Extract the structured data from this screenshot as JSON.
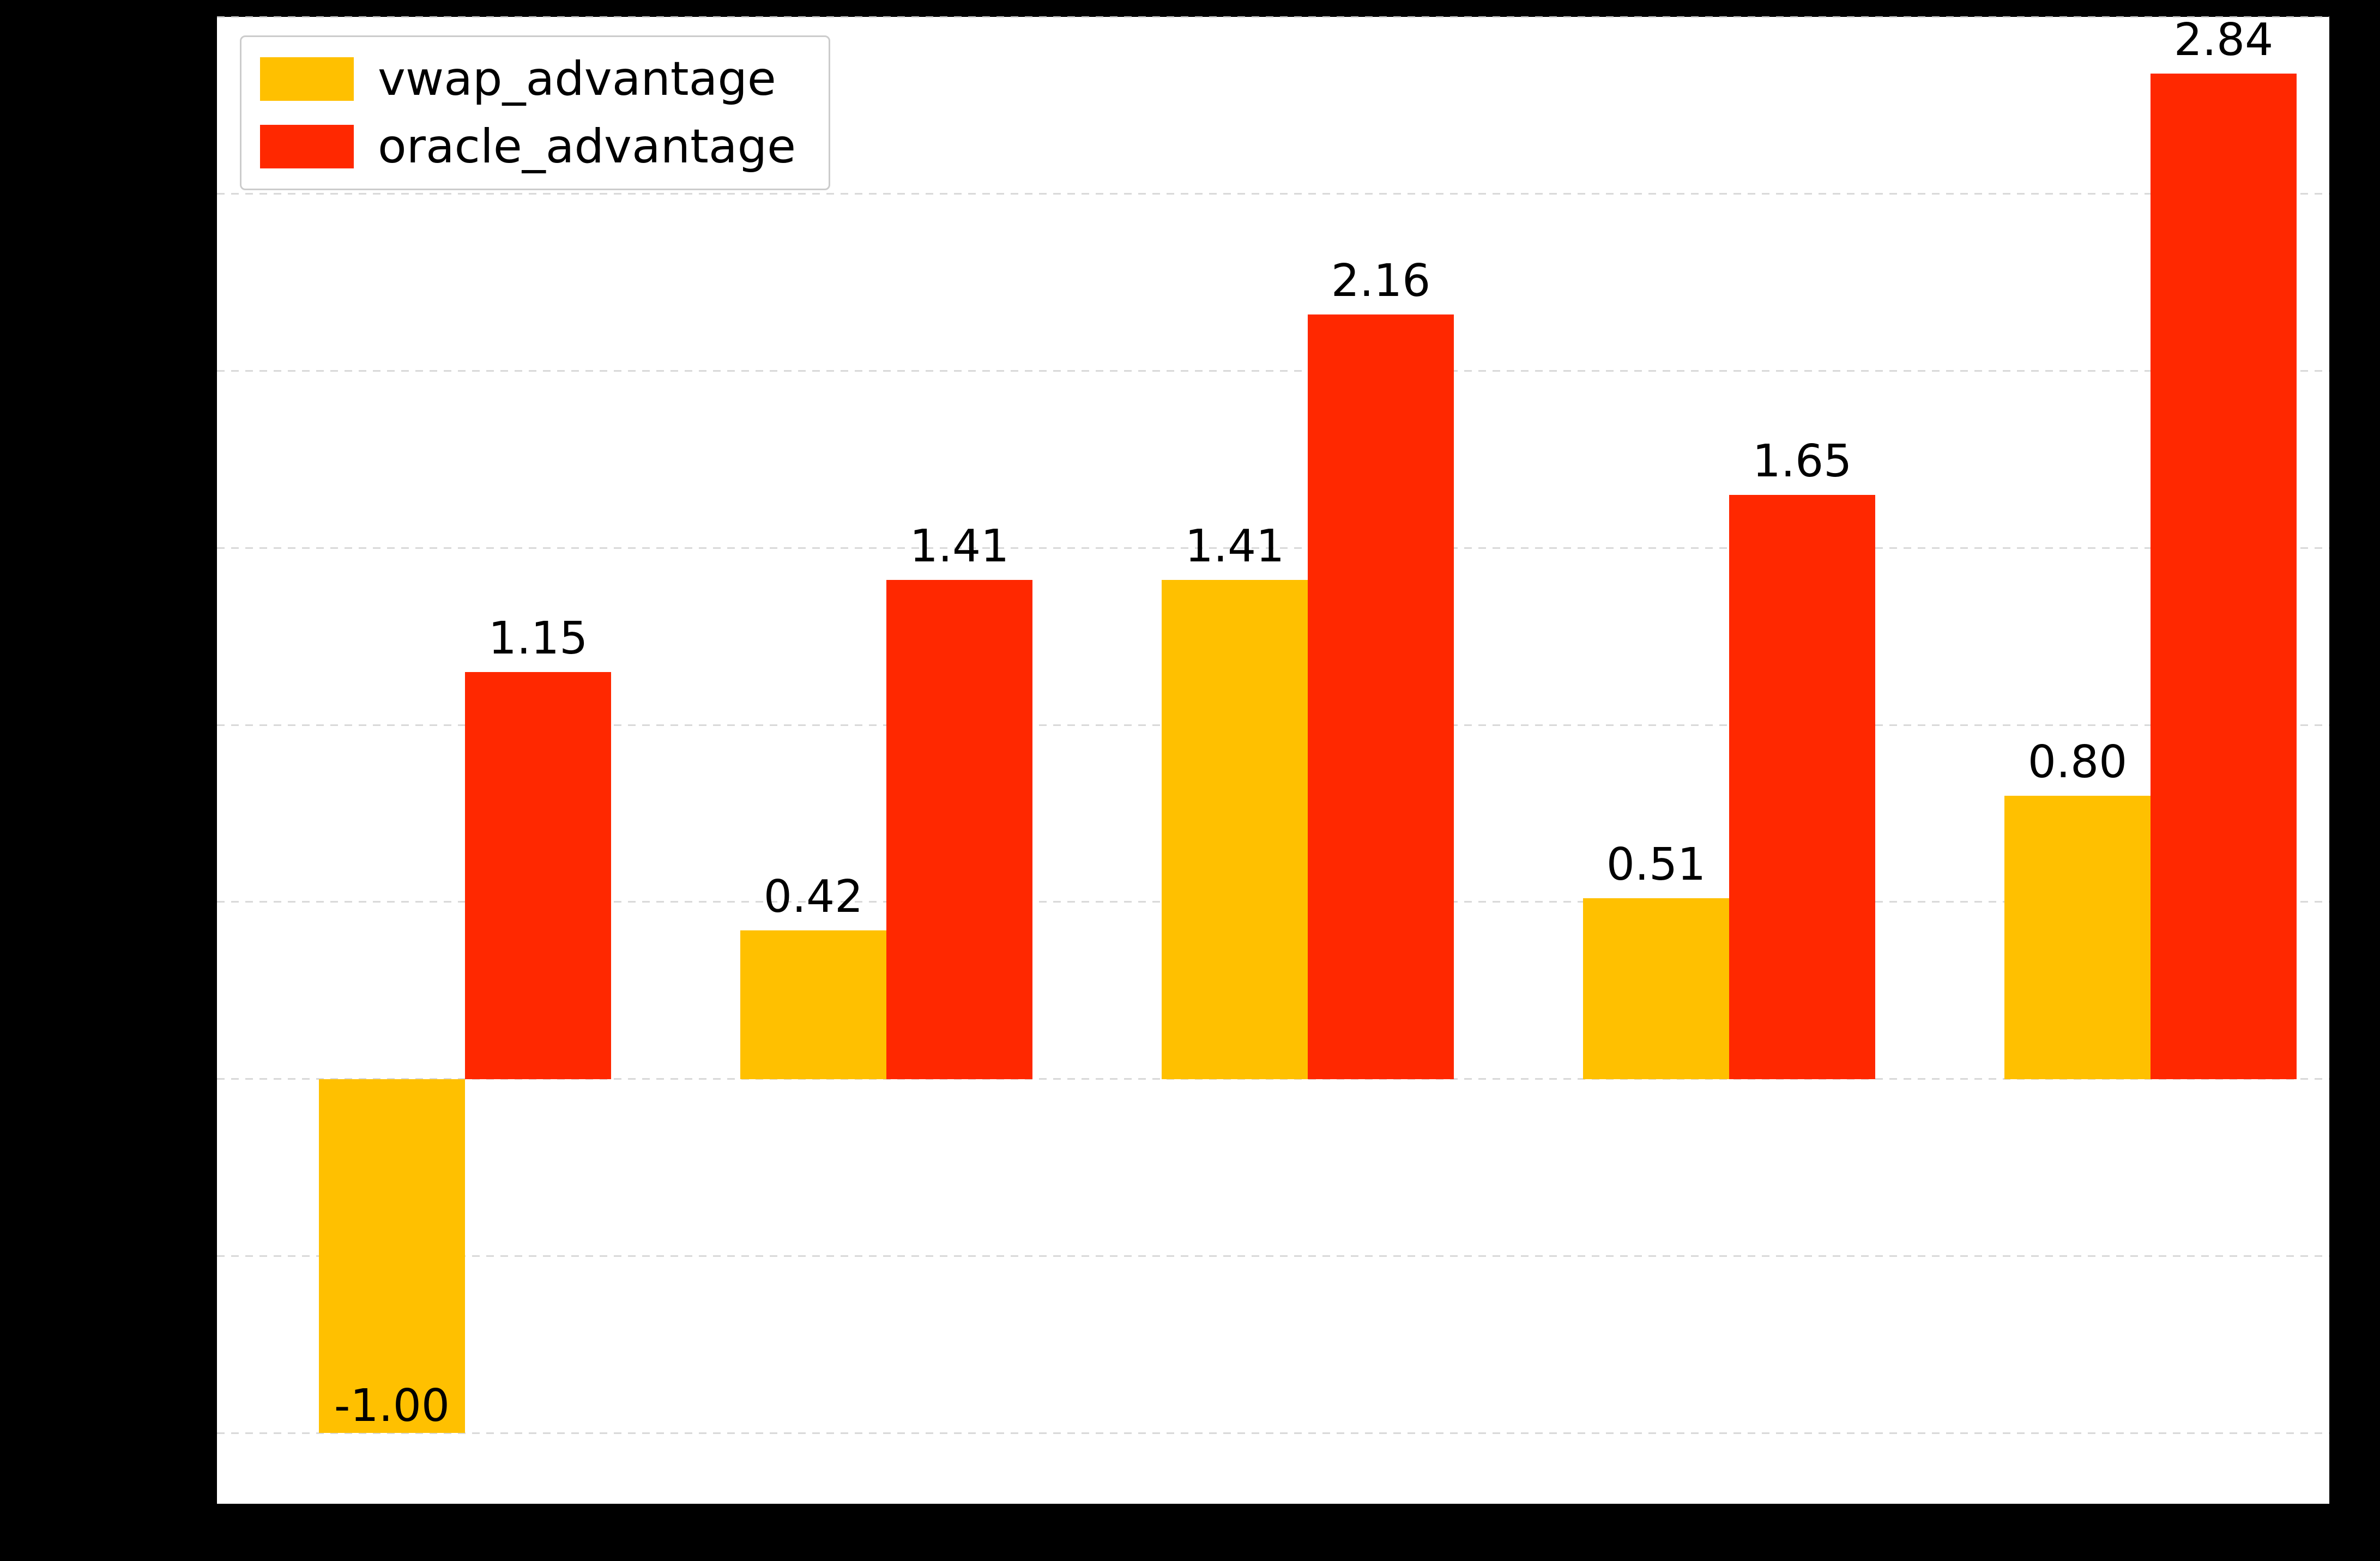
{
  "figure": {
    "background_color": "#000000",
    "plot_background_color": "#ffffff",
    "gridline_color": "#d9d9d9"
  },
  "chart_data": {
    "type": "bar",
    "categories": [
      "",
      "",
      "",
      "",
      ""
    ],
    "series": [
      {
        "name": "vwap_advantage",
        "color": "#FFC000",
        "values": [
          -1.0,
          0.42,
          1.41,
          0.51,
          0.8
        ]
      },
      {
        "name": "oracle_advantage",
        "color": "#FF2800",
        "values": [
          1.15,
          1.41,
          2.16,
          1.65,
          2.84
        ]
      }
    ],
    "value_labels": [
      [
        "-1.00",
        "0.42",
        "1.41",
        "0.51",
        "0.80"
      ],
      [
        "1.15",
        "1.41",
        "2.16",
        "1.65",
        "2.84"
      ]
    ],
    "title": "",
    "xlabel": "",
    "ylabel": "",
    "ylim": [
      -1.2,
      3.0
    ],
    "grid": {
      "visible": true,
      "step": 0.5,
      "style": "dashed",
      "from": -1.0,
      "to": 3.0
    },
    "legend_position": "upper-left"
  }
}
